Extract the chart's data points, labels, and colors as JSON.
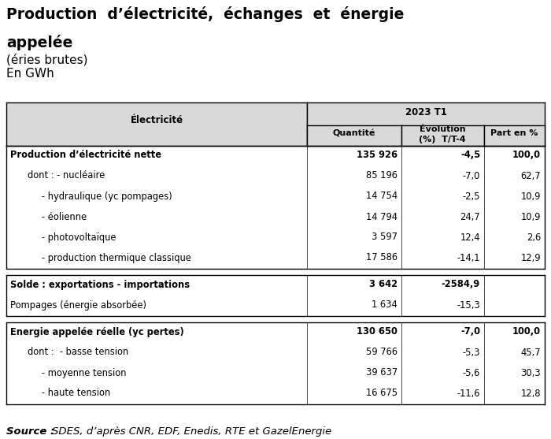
{
  "title_line1": "Production  d’électricité,  échanges  et  énergie",
  "title_line2": "appelée",
  "subtitle1": "(éries brutes)",
  "subtitle2": "En GWh",
  "col_header_left": "Électricité",
  "col_header_period": "2023 T1",
  "col_header_quantite": "Quantité",
  "col_header_evolution": "Évolution\n(%)  T/T-4",
  "col_header_part": "Part en %",
  "section_A": [
    {
      "label": "Production d’électricité nette",
      "quantite": "135 926",
      "evolution": "-4,5",
      "part": "100,0",
      "bold": true,
      "indent": 0
    },
    {
      "label": "dont : - nucléaire",
      "quantite": "85 196",
      "evolution": "-7,0",
      "part": "62,7",
      "bold": false,
      "indent": 1
    },
    {
      "label": "- hydraulique (yc pompages)",
      "quantite": "14 754",
      "evolution": "-2,5",
      "part": "10,9",
      "bold": false,
      "indent": 2
    },
    {
      "label": "- éolienne",
      "quantite": "14 794",
      "evolution": "24,7",
      "part": "10,9",
      "bold": false,
      "indent": 2
    },
    {
      "label": "- photovoltaïque",
      "quantite": "3 597",
      "evolution": "12,4",
      "part": "2,6",
      "bold": false,
      "indent": 2
    },
    {
      "label": "- production thermique classique",
      "quantite": "17 586",
      "evolution": "-14,1",
      "part": "12,9",
      "bold": false,
      "indent": 2
    }
  ],
  "section_B": [
    {
      "label": "Solde : exportations - importations",
      "quantite": "3 642",
      "evolution": "-2584,9",
      "part": "",
      "bold": true,
      "indent": 0
    },
    {
      "label": "Pompages (énergie absorbée)",
      "quantite": "1 634",
      "evolution": "-15,3",
      "part": "",
      "bold": false,
      "indent": 0
    }
  ],
  "section_C": [
    {
      "label": "Energie appelée réelle (yc pertes)",
      "quantite": "130 650",
      "evolution": "-7,0",
      "part": "100,0",
      "bold": true,
      "indent": 0
    },
    {
      "label": "dont :  - basse tension",
      "quantite": "59 766",
      "evolution": "-5,3",
      "part": "45,7",
      "bold": false,
      "indent": 1
    },
    {
      "label": "- moyenne tension",
      "quantite": "39 637",
      "evolution": "-5,6",
      "part": "30,3",
      "bold": false,
      "indent": 2
    },
    {
      "label": "- haute tension",
      "quantite": "16 675",
      "evolution": "-11,6",
      "part": "12,8",
      "bold": false,
      "indent": 2
    }
  ],
  "source_bold": "Source : ",
  "source_italic": "SDES, d’après CNR, EDF, Enedis, RTE et GazelEnergie",
  "bg_color": "#ffffff",
  "table_header_bg": "#d9d9d9",
  "border_color": "#000000",
  "text_color": "#000000",
  "fig_width": 7.0,
  "fig_height": 5.57,
  "dpi": 100
}
